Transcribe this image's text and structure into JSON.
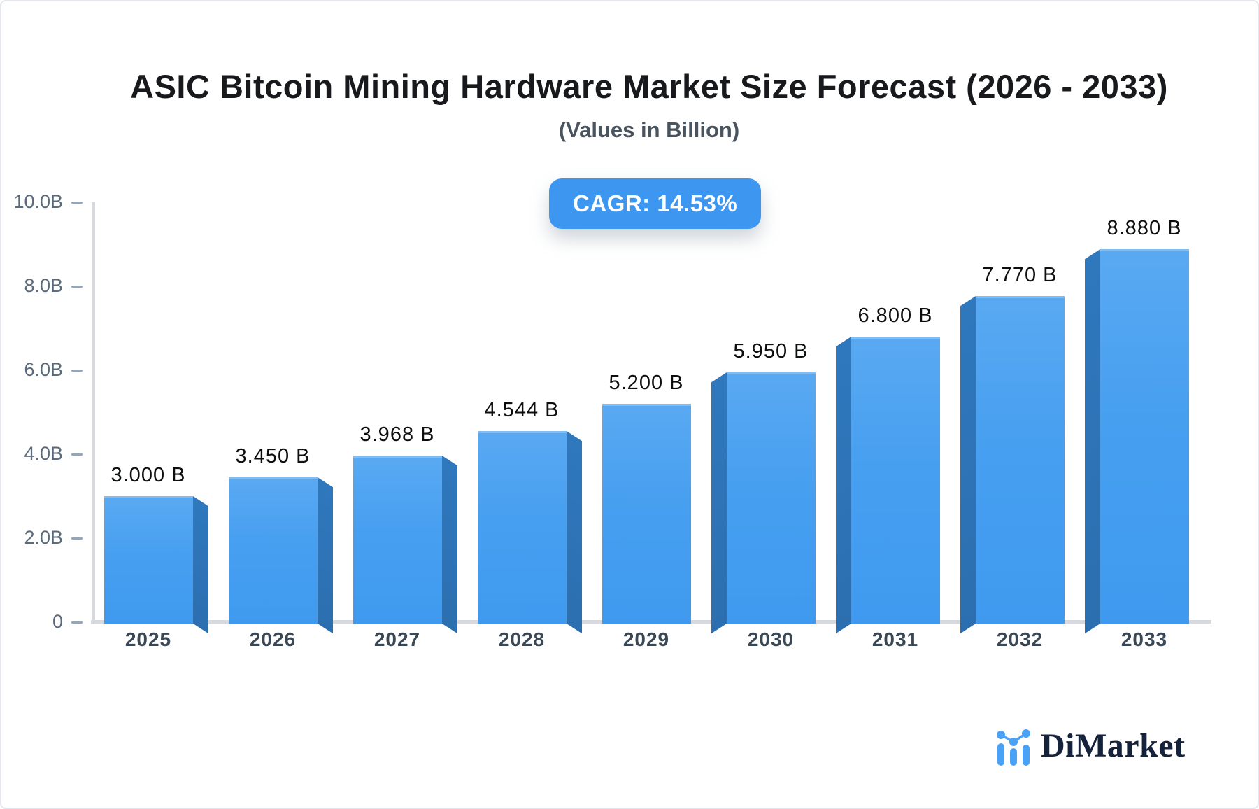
{
  "header": {
    "title": "ASIC Bitcoin Mining Hardware Market Size Forecast (2026 - 2033)",
    "subtitle": "(Values in Billion)"
  },
  "badge": {
    "label": "CAGR: 14.53%"
  },
  "chart_data": {
    "type": "bar",
    "title": "ASIC Bitcoin Mining Hardware Market Size Forecast (2026 - 2033)",
    "subtitle": "(Values in Billion)",
    "categories": [
      "2025",
      "2026",
      "2027",
      "2028",
      "2029",
      "2030",
      "2031",
      "2032",
      "2033"
    ],
    "values": [
      3.0,
      3.45,
      3.968,
      4.544,
      5.2,
      5.95,
      6.8,
      7.77,
      8.88
    ],
    "value_labels": [
      "3.000 B",
      "3.450 B",
      "3.968 B",
      "4.544 B",
      "5.200 B",
      "5.950 B",
      "6.800 B",
      "7.770 B",
      "8.880 B"
    ],
    "xlabel": "",
    "ylabel": "",
    "ylim": [
      0,
      10
    ],
    "grid": false,
    "legend": "none",
    "yticks": [
      {
        "value": 0,
        "label": "0"
      },
      {
        "value": 2,
        "label": "2.0B"
      },
      {
        "value": 4,
        "label": "4.0B"
      },
      {
        "value": 6,
        "label": "6.0B"
      },
      {
        "value": 8,
        "label": "8.0B"
      },
      {
        "value": 10,
        "label": "10.0B"
      }
    ]
  },
  "colors": {
    "bar_face_top": "#59a9f2",
    "bar_face_bottom": "#3f9aef",
    "bar_side": "#2e74b8",
    "badge_background": "#3d97f1",
    "badge_text": "#ffffff",
    "axis_line": "#d6dadf",
    "tick_text": "#5c6b7c",
    "logo_icon_blue": "#4aa2f6",
    "logo_text_navy": "#15223b"
  },
  "logo": {
    "brand": "DiMarket",
    "icon": "bar-line-chart-icon"
  }
}
